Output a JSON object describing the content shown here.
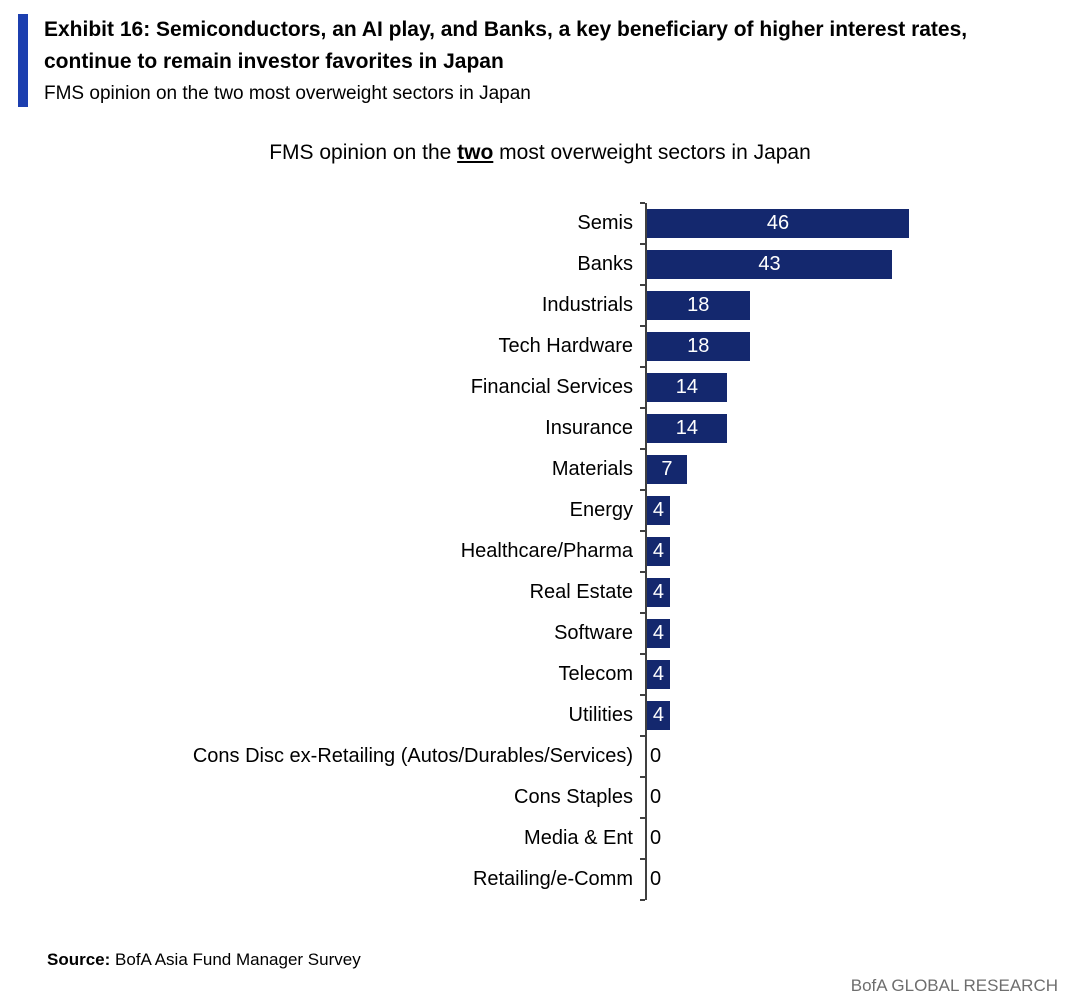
{
  "header": {
    "title": "Exhibit 16: Semiconductors, an AI play, and Banks, a key beneficiary of higher interest rates, continue to remain investor favorites in Japan",
    "subtitle": "FMS opinion on the two most overweight sectors in Japan"
  },
  "chart_title": {
    "prefix": "FMS opinion on the ",
    "emphasis": "two",
    "suffix": " most overweight sectors in Japan"
  },
  "chart_data": {
    "type": "bar",
    "orientation": "horizontal",
    "title": "FMS opinion on the two most overweight sectors in Japan",
    "categories": [
      "Semis",
      "Banks",
      "Industrials",
      "Tech Hardware",
      "Financial Services",
      "Insurance",
      "Materials",
      "Energy",
      "Healthcare/Pharma",
      "Real Estate",
      "Software",
      "Telecom",
      "Utilities",
      "Cons Disc ex-Retailing (Autos/Durables/Services)",
      "Cons Staples",
      "Media & Ent",
      "Retailing/e-Comm"
    ],
    "values": [
      46,
      43,
      18,
      18,
      14,
      14,
      7,
      4,
      4,
      4,
      4,
      4,
      4,
      0,
      0,
      0,
      0
    ],
    "xlim": [
      0,
      46
    ],
    "bar_color": "#14286E",
    "value_label_color_inside": "#FFFFFF",
    "value_label_color_zero": "#000000",
    "grid": false,
    "legend": false
  },
  "footer": {
    "source_label": "Source:",
    "source_text": " BofA Asia Fund Manager Survey",
    "branding": "BofA GLOBAL RESEARCH"
  },
  "colors": {
    "accent_bar": "#1C3FAF",
    "bar": "#14286E",
    "axis": "#404040",
    "branding_text": "#6E6E6E"
  }
}
